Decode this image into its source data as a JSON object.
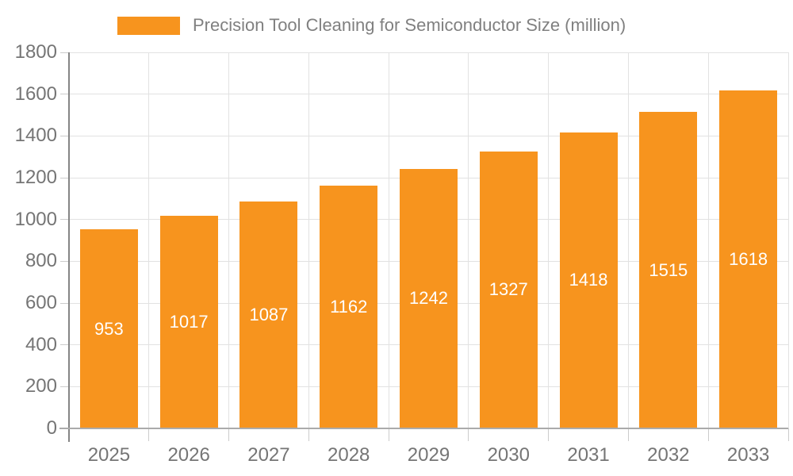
{
  "chart_data": {
    "type": "bar",
    "title": "Precision Tool Cleaning for Semiconductor Size (million)",
    "legend_label": "Precision Tool Cleaning for Semiconductor Size (million)",
    "legend_position": "top",
    "categories": [
      "2025",
      "2026",
      "2027",
      "2028",
      "2029",
      "2030",
      "2031",
      "2032",
      "2033"
    ],
    "values": [
      953,
      1017,
      1087,
      1162,
      1242,
      1327,
      1418,
      1515,
      1618
    ],
    "yticks": [
      0,
      200,
      400,
      600,
      800,
      1000,
      1200,
      1400,
      1600,
      1800
    ],
    "ylim": [
      0,
      1800
    ],
    "xlabel": "",
    "ylabel": "",
    "grid": true,
    "bar_color": "#F7941E",
    "bar_label_color": "#FFFFFF",
    "legend_text_color": "#808080",
    "axis_text_color": "#757575",
    "gridline_color": "#E2E2E2",
    "tick_color": "#CCCCCC",
    "y_axis_line_color": "#858585",
    "x_axis_line_color": "#ABABAB"
  }
}
